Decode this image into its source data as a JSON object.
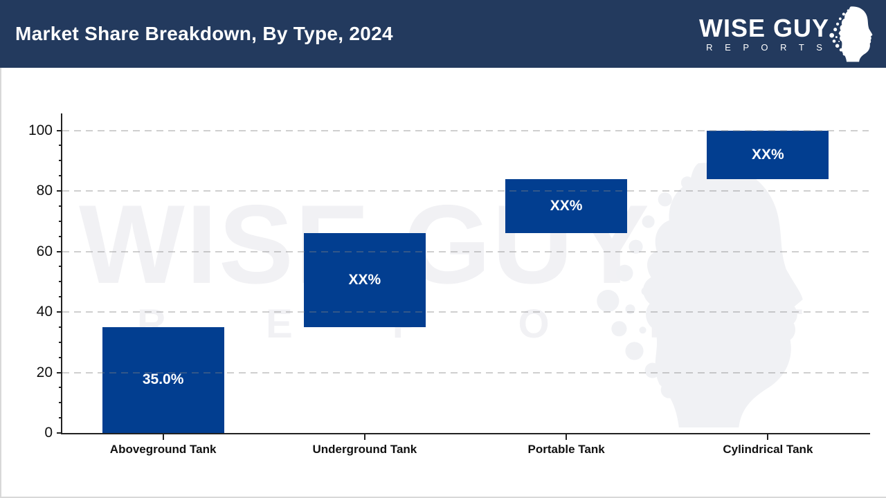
{
  "header": {
    "title": "Market Share Breakdown, By Type, 2024",
    "logo": {
      "name": "WISE GUY",
      "tagline": "R E P O R T S"
    }
  },
  "watermark": {
    "name": "WISE GUY",
    "tagline": "R E P O R T S"
  },
  "colors": {
    "header_bg": "#233A5E",
    "bar_fill": "#023E90",
    "bar_label_text": "#FFFFFF",
    "axis": "#212121",
    "tick_label": "#111111",
    "gridline": "rgba(128,128,128,0.38)",
    "watermark": "#F1F1F4",
    "page_border": "#D8D8D8",
    "chart_bg": "#FFFFFF"
  },
  "chart_data": {
    "type": "bar",
    "variant": "waterfall",
    "title": "Market Share Breakdown, By Type, 2024",
    "categories": [
      "Aboveground Tank",
      "Underground Tank",
      "Portable Tank",
      "Cylindrical Tank"
    ],
    "series": [
      {
        "name": "Market Share",
        "segments": [
          {
            "category": "Aboveground Tank",
            "start": 0,
            "end": 35,
            "label": "35.0%"
          },
          {
            "category": "Underground Tank",
            "start": 35,
            "end": 66,
            "label": "XX%"
          },
          {
            "category": "Portable Tank",
            "start": 66,
            "end": 84,
            "label": "XX%"
          },
          {
            "category": "Cylindrical Tank",
            "start": 84,
            "end": 100,
            "label": "XX%"
          }
        ]
      }
    ],
    "xlabel": "",
    "ylabel": "",
    "yticks": [
      0,
      20,
      40,
      60,
      80,
      100
    ],
    "minor_tick_step": 5,
    "ylim": [
      0,
      105
    ],
    "grid": {
      "horizontal": true,
      "style": "dashed"
    },
    "legend": false
  }
}
